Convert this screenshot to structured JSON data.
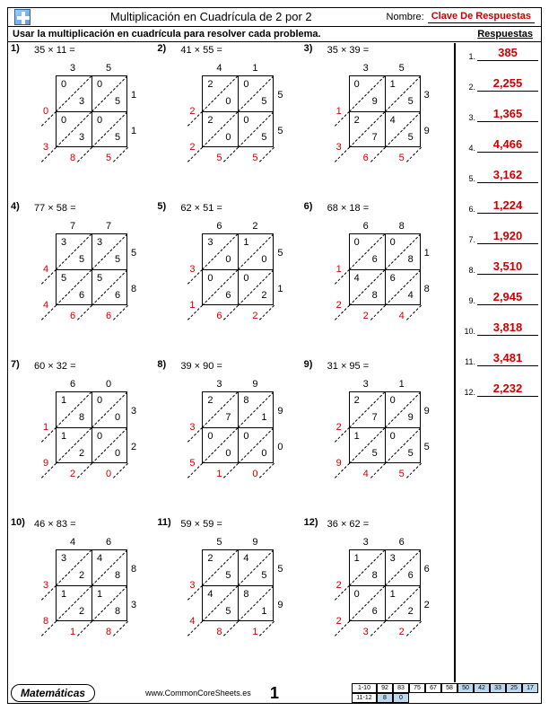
{
  "header": {
    "title": "Multiplicación en Cuadrícula de 2 por 2",
    "name_label": "Nombre:",
    "name_value": "Clave De Respuestas"
  },
  "instruction": "Usar la multiplicación en cuadrícula para resolver cada problema.",
  "respuestas_label": "Respuestas",
  "problems": [
    {
      "n": 1,
      "eq": "35 × 11 =",
      "top": [
        "3",
        "5"
      ],
      "right": [
        "1",
        "1"
      ],
      "cells": [
        [
          "0",
          "3"
        ],
        [
          "0",
          "5"
        ],
        [
          "0",
          "3"
        ],
        [
          "0",
          "5"
        ]
      ],
      "carry_left": [
        "0",
        "3"
      ],
      "bottom": [
        "8",
        "5"
      ]
    },
    {
      "n": 2,
      "eq": "41 × 55 =",
      "top": [
        "4",
        "1"
      ],
      "right": [
        "5",
        "5"
      ],
      "cells": [
        [
          "2",
          "0"
        ],
        [
          "0",
          "5"
        ],
        [
          "2",
          "0"
        ],
        [
          "0",
          "5"
        ]
      ],
      "carry_left": [
        "2",
        "2"
      ],
      "bottom": [
        "5",
        "5"
      ]
    },
    {
      "n": 3,
      "eq": "35 × 39 =",
      "top": [
        "3",
        "5"
      ],
      "right": [
        "3",
        "9"
      ],
      "cells": [
        [
          "0",
          "9"
        ],
        [
          "1",
          "5"
        ],
        [
          "2",
          "7"
        ],
        [
          "4",
          "5"
        ]
      ],
      "carry_left": [
        "1",
        "3"
      ],
      "bottom": [
        "6",
        "5"
      ]
    },
    {
      "n": 4,
      "eq": "77 × 58 =",
      "top": [
        "7",
        "7"
      ],
      "right": [
        "5",
        "8"
      ],
      "cells": [
        [
          "3",
          "5"
        ],
        [
          "3",
          "5"
        ],
        [
          "5",
          "6"
        ],
        [
          "5",
          "6"
        ]
      ],
      "carry_left": [
        "4",
        "4"
      ],
      "bottom": [
        "6",
        "6"
      ]
    },
    {
      "n": 5,
      "eq": "62 × 51 =",
      "top": [
        "6",
        "2"
      ],
      "right": [
        "5",
        "1"
      ],
      "cells": [
        [
          "3",
          "0"
        ],
        [
          "1",
          "0"
        ],
        [
          "0",
          "6"
        ],
        [
          "0",
          "2"
        ]
      ],
      "carry_left": [
        "3",
        "1"
      ],
      "bottom": [
        "6",
        "2"
      ]
    },
    {
      "n": 6,
      "eq": "68 × 18 =",
      "top": [
        "6",
        "8"
      ],
      "right": [
        "1",
        "8"
      ],
      "cells": [
        [
          "0",
          "6"
        ],
        [
          "0",
          "8"
        ],
        [
          "4",
          "8"
        ],
        [
          "6",
          "4"
        ]
      ],
      "carry_left": [
        "1",
        "2"
      ],
      "bottom": [
        "2",
        "4"
      ]
    },
    {
      "n": 7,
      "eq": "60 × 32 =",
      "top": [
        "6",
        "0"
      ],
      "right": [
        "3",
        "2"
      ],
      "cells": [
        [
          "1",
          "8"
        ],
        [
          "0",
          "0"
        ],
        [
          "1",
          "2"
        ],
        [
          "0",
          "0"
        ]
      ],
      "carry_left": [
        "1",
        "9"
      ],
      "bottom": [
        "2",
        "0"
      ]
    },
    {
      "n": 8,
      "eq": "39 × 90 =",
      "top": [
        "3",
        "9"
      ],
      "right": [
        "9",
        "0"
      ],
      "cells": [
        [
          "2",
          "7"
        ],
        [
          "8",
          "1"
        ],
        [
          "0",
          "0"
        ],
        [
          "0",
          "0"
        ]
      ],
      "carry_left": [
        "3",
        "5"
      ],
      "bottom": [
        "1",
        "0"
      ]
    },
    {
      "n": 9,
      "eq": "31 × 95 =",
      "top": [
        "3",
        "1"
      ],
      "right": [
        "9",
        "5"
      ],
      "cells": [
        [
          "2",
          "7"
        ],
        [
          "0",
          "9"
        ],
        [
          "1",
          "5"
        ],
        [
          "0",
          "5"
        ]
      ],
      "carry_left": [
        "2",
        "9"
      ],
      "bottom": [
        "4",
        "5"
      ]
    },
    {
      "n": 10,
      "eq": "46 × 83 =",
      "top": [
        "4",
        "6"
      ],
      "right": [
        "8",
        "3"
      ],
      "cells": [
        [
          "3",
          "2"
        ],
        [
          "4",
          "8"
        ],
        [
          "1",
          "2"
        ],
        [
          "1",
          "8"
        ]
      ],
      "carry_left": [
        "3",
        "8"
      ],
      "bottom": [
        "1",
        "8"
      ]
    },
    {
      "n": 11,
      "eq": "59 × 59 =",
      "top": [
        "5",
        "9"
      ],
      "right": [
        "5",
        "9"
      ],
      "cells": [
        [
          "2",
          "5"
        ],
        [
          "4",
          "5"
        ],
        [
          "4",
          "5"
        ],
        [
          "8",
          "1"
        ]
      ],
      "carry_left": [
        "3",
        "4"
      ],
      "bottom": [
        "8",
        "1"
      ]
    },
    {
      "n": 12,
      "eq": "36 × 62 =",
      "top": [
        "3",
        "6"
      ],
      "right": [
        "6",
        "2"
      ],
      "cells": [
        [
          "1",
          "8"
        ],
        [
          "3",
          "6"
        ],
        [
          "0",
          "6"
        ],
        [
          "1",
          "2"
        ]
      ],
      "carry_left": [
        "2",
        "2"
      ],
      "bottom": [
        "3",
        "2"
      ]
    }
  ],
  "answers": [
    "385",
    "2,255",
    "1,365",
    "4,466",
    "3,162",
    "1,224",
    "1,920",
    "3,510",
    "2,945",
    "3,818",
    "3,481",
    "2,232"
  ],
  "footer": {
    "subject": "Matemáticas",
    "url": "www.CommonCoreSheets.es",
    "page": "1",
    "score": {
      "row1_label": "1-10",
      "row1": [
        "92",
        "83",
        "75",
        "67",
        "58",
        "50",
        "42",
        "33",
        "25",
        "17"
      ],
      "row2_label": "11-12",
      "row2": [
        "8",
        "0"
      ]
    }
  },
  "colors": {
    "red": "#c00",
    "blue_cell": "#bcd8ef"
  }
}
